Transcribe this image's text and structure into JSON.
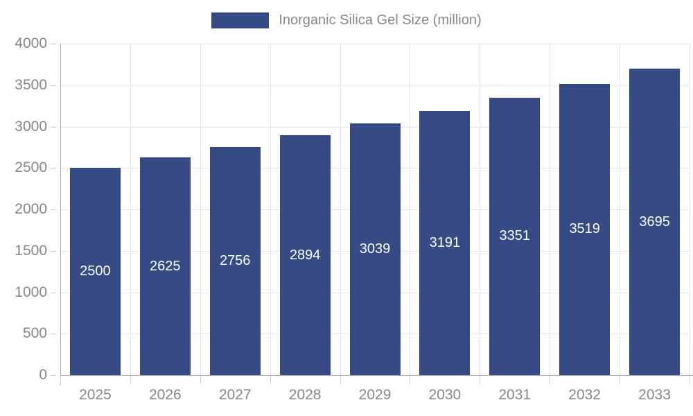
{
  "legend": {
    "position": "top-center",
    "swatch_color": "#364a85"
  },
  "chart_data": {
    "type": "bar",
    "title": "",
    "xlabel": "",
    "ylabel": "",
    "series_name": "Inorganic Silica Gel Size (million)",
    "legend_entries": [
      "Inorganic Silica Gel Size (million)"
    ],
    "categories": [
      "2025",
      "2026",
      "2027",
      "2028",
      "2029",
      "2030",
      "2031",
      "2032",
      "2033"
    ],
    "values": [
      2500,
      2625,
      2756,
      2894,
      3039,
      3191,
      3351,
      3519,
      3695
    ],
    "ylim": [
      0,
      4000
    ],
    "y_ticks": [
      0,
      500,
      1000,
      1500,
      2000,
      2500,
      3000,
      3500,
      4000
    ],
    "grid": true,
    "value_labels_shown": true,
    "bar_color": "#364a85",
    "value_label_color": "#ffffff",
    "axis_label_color": "#878787",
    "gridline_color": "#e6e6e6",
    "axis_line_color": "#a8a8a8"
  }
}
